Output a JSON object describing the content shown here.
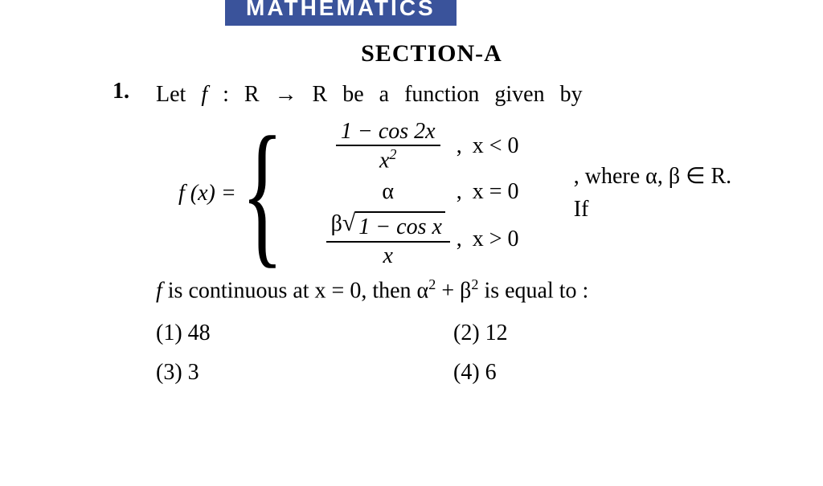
{
  "subject_banner": "MATHEMATICS",
  "section_title": "SECTION-A",
  "question": {
    "number": "1.",
    "stem_prefix": "Let ",
    "stem_func": "f",
    "stem_mid": " : R → R be a function given by",
    "piecewise": {
      "lhs": "f (x) =",
      "case1_num": "1 − cos 2x",
      "case1_den": "x",
      "case1_exp": "2",
      "case1_cond": "x < 0",
      "case2_expr": "α",
      "case2_cond": "x = 0",
      "case3_beta": "β",
      "case3_radicand": "1 − cos x",
      "case3_den": "x",
      "case3_cond": "x > 0",
      "tail": ", where α, β ∈ R. If"
    },
    "continuity_prefix": "f",
    "continuity_mid": " is continuous at x = 0, then α",
    "continuity_exp1": "2",
    "continuity_plus": " + β",
    "continuity_exp2": "2",
    "continuity_suffix": " is equal to :",
    "options": {
      "o1": "(1) 48",
      "o2": "(2) 12",
      "o3": "(3) 3",
      "o4": "(4) 6"
    }
  },
  "colors": {
    "banner_bg": "#3a539b",
    "banner_fg": "#ffffff",
    "text": "#000000",
    "page_bg": "#ffffff"
  }
}
